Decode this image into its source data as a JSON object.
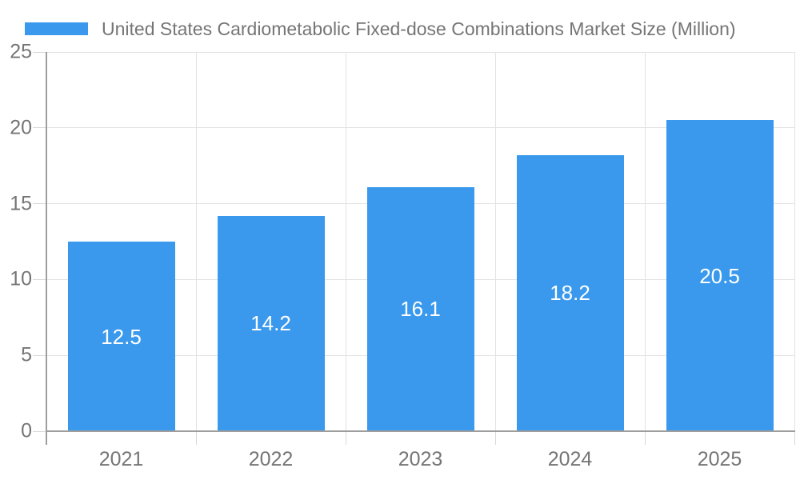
{
  "chart_data": {
    "type": "bar",
    "title": "United States Cardiometabolic Fixed-dose Combinations Market Size (Million)",
    "categories": [
      "2021",
      "2022",
      "2023",
      "2024",
      "2025"
    ],
    "values": [
      12.5,
      14.2,
      16.1,
      18.2,
      20.5
    ],
    "value_labels": [
      "12.5",
      "14.2",
      "16.1",
      "18.2",
      "20.5"
    ],
    "xlabel": "",
    "ylabel": "",
    "ylim": [
      0,
      25
    ],
    "yticks": [
      0,
      5,
      10,
      15,
      20,
      25
    ],
    "grid": true,
    "legend_position": "top-left",
    "bar_color": "#3A99EC",
    "bar_label_color": "#ffffff",
    "axis_text_color": "#757575",
    "gridline_color": "#e2e2e2",
    "axis_line_color": "#9e9e9e"
  }
}
